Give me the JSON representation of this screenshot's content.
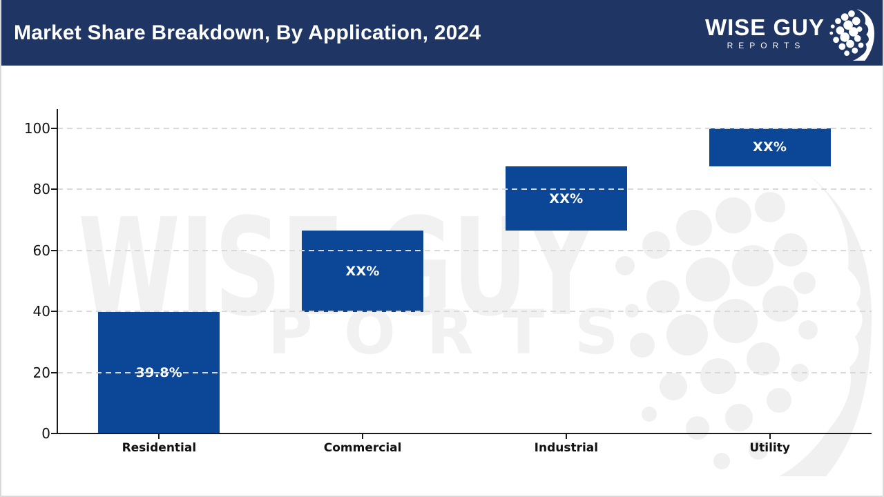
{
  "header": {
    "title": "Market Share Breakdown, By Application, 2024",
    "logo": {
      "brand_line1": "WISE GUY",
      "brand_line2": "REPORTS"
    }
  },
  "watermark": {
    "line1": "WISE GUY",
    "line2": "P O R T S"
  },
  "chart_data": {
    "type": "bar",
    "subtype": "waterfall",
    "title": "Market Share Breakdown, By Application, 2024",
    "categories": [
      "Residential",
      "Commercial",
      "Industrial",
      "Utility"
    ],
    "segments": [
      {
        "category": "Residential",
        "start": 0,
        "end": 39.8,
        "label": "39.8%"
      },
      {
        "category": "Commercial",
        "start": 39.8,
        "end": 66.4,
        "label": "XX%"
      },
      {
        "category": "Industrial",
        "start": 66.4,
        "end": 87.4,
        "label": "XX%"
      },
      {
        "category": "Utility",
        "start": 87.4,
        "end": 100,
        "label": "XX%"
      }
    ],
    "xlabel": "",
    "ylabel": "",
    "ylim": [
      0,
      105
    ],
    "yticks": [
      0,
      20,
      40,
      60,
      80,
      100
    ],
    "grid": "horizontal-dashed",
    "legend": "none",
    "bar_color": "#0b4796",
    "bar_label_color": "#ffffff"
  },
  "colors": {
    "header_bg": "#1f3563",
    "bar": "#0b4796",
    "grid": "#d9d9d9",
    "axis": "#1a1a1a",
    "watermark": "#f1f1f1",
    "page_border": "#d9d9d9"
  }
}
